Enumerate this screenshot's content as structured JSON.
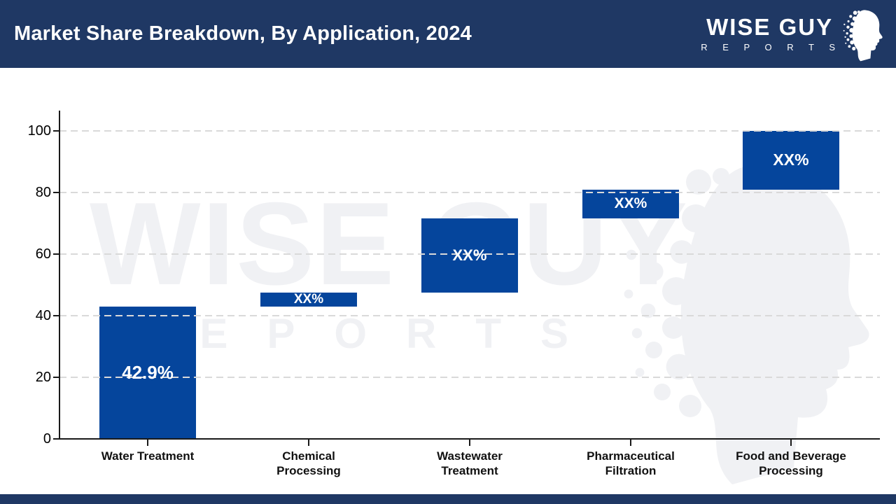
{
  "header": {
    "title": "Market Share Breakdown, By Application, 2024",
    "logo": {
      "name": "WISE GUY",
      "sub": "R E P O R T S"
    }
  },
  "watermark": {
    "line1": "WISE GUY",
    "line2": "REPORTS"
  },
  "chart_data": {
    "type": "bar",
    "subtype": "waterfall",
    "title": "Market Share Breakdown, By Application, 2024",
    "categories": [
      "Water Treatment",
      "Chemical Processing",
      "Wastewater Treatment",
      "Pharmaceutical Filtration",
      "Food and Beverage Processing"
    ],
    "category_lines": [
      [
        "Water Treatment"
      ],
      [
        "Chemical",
        "Processing"
      ],
      [
        "Wastewater",
        "Treatment"
      ],
      [
        "Pharmaceutical",
        "Filtration"
      ],
      [
        "Food and Beverage",
        "Processing"
      ]
    ],
    "segments": [
      {
        "category": "Water Treatment",
        "start": 0,
        "end": 42.9,
        "label": "42.9%"
      },
      {
        "category": "Chemical Processing",
        "start": 42.9,
        "end": 47.6,
        "label": "XX%"
      },
      {
        "category": "Wastewater Treatment",
        "start": 47.6,
        "end": 71.5,
        "label": "XX%"
      },
      {
        "category": "Pharmaceutical Filtration",
        "start": 71.5,
        "end": 81.0,
        "label": "XX%"
      },
      {
        "category": "Food and Beverage Processing",
        "start": 81.0,
        "end": 100.0,
        "label": "XX%"
      }
    ],
    "ylim": [
      0,
      100
    ],
    "yticks": [
      0,
      20,
      40,
      60,
      80,
      100
    ],
    "xlabel": "",
    "ylabel": "",
    "grid": "dashed-horizontal",
    "legend": "none"
  },
  "colors": {
    "header_bg": "#1f3864",
    "footer_bg": "#1f3864",
    "bar": "#05459c",
    "bar_label": "#ffffff",
    "grid": "#d9d9d9",
    "axis": "#1a1a1a",
    "watermark": "#f0f1f4"
  }
}
